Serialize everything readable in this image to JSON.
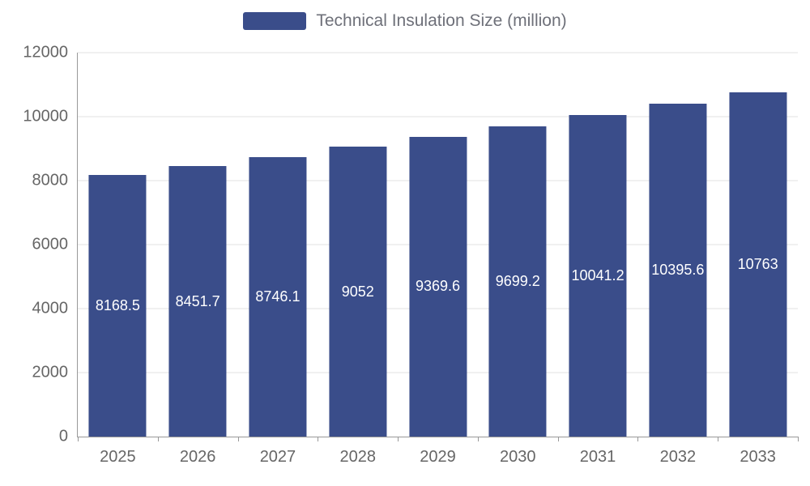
{
  "chart_data": {
    "type": "bar",
    "title": "Technical Insulation Size (million)",
    "series_name": "Technical Insulation Size (million)",
    "categories": [
      "2025",
      "2026",
      "2027",
      "2028",
      "2029",
      "2030",
      "2031",
      "2032",
      "2033"
    ],
    "values": [
      8168.5,
      8451.7,
      8746.1,
      9052,
      9369.6,
      9699.2,
      10041.2,
      10395.6,
      10763
    ],
    "labels": [
      "8168.5",
      "8451.7",
      "8746.1",
      "9052",
      "9369.6",
      "9699.2",
      "10041.2",
      "10395.6",
      "10763"
    ],
    "xlabel": "",
    "ylabel": "",
    "ylim": [
      0,
      12000
    ],
    "yticks": [
      0,
      2000,
      4000,
      6000,
      8000,
      10000,
      12000
    ],
    "grid": true,
    "legend_position": "top",
    "bar_color": "#3a4d8a",
    "label_color": "#ffffff",
    "axis_text_color": "#666666",
    "title_color": "#6e7079"
  }
}
